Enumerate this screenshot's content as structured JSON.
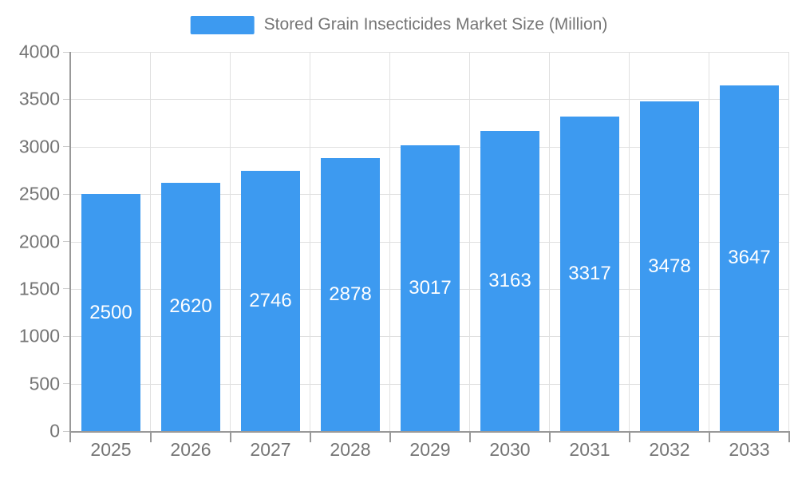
{
  "legend": {
    "label": "Stored Grain Insecticides Market Size (Million)"
  },
  "chart_data": {
    "type": "bar",
    "title": "Stored Grain Insecticides Market Size (Million)",
    "categories": [
      "2025",
      "2026",
      "2027",
      "2028",
      "2029",
      "2030",
      "2031",
      "2032",
      "2033"
    ],
    "values": [
      2500,
      2620,
      2746,
      2878,
      3017,
      3163,
      3317,
      3478,
      3647
    ],
    "yticks": [
      0,
      500,
      1000,
      1500,
      2000,
      2500,
      3000,
      3500,
      4000
    ],
    "ylim": [
      0,
      4000
    ],
    "xlabel": "",
    "ylabel": "",
    "grid": true,
    "legend_position": "top-center",
    "colors": {
      "bar": "#3d9af0",
      "value_label": "#ffffff",
      "axis_label": "#757575",
      "axis_line": "#999999",
      "grid_line": "#e0e0e0"
    }
  }
}
